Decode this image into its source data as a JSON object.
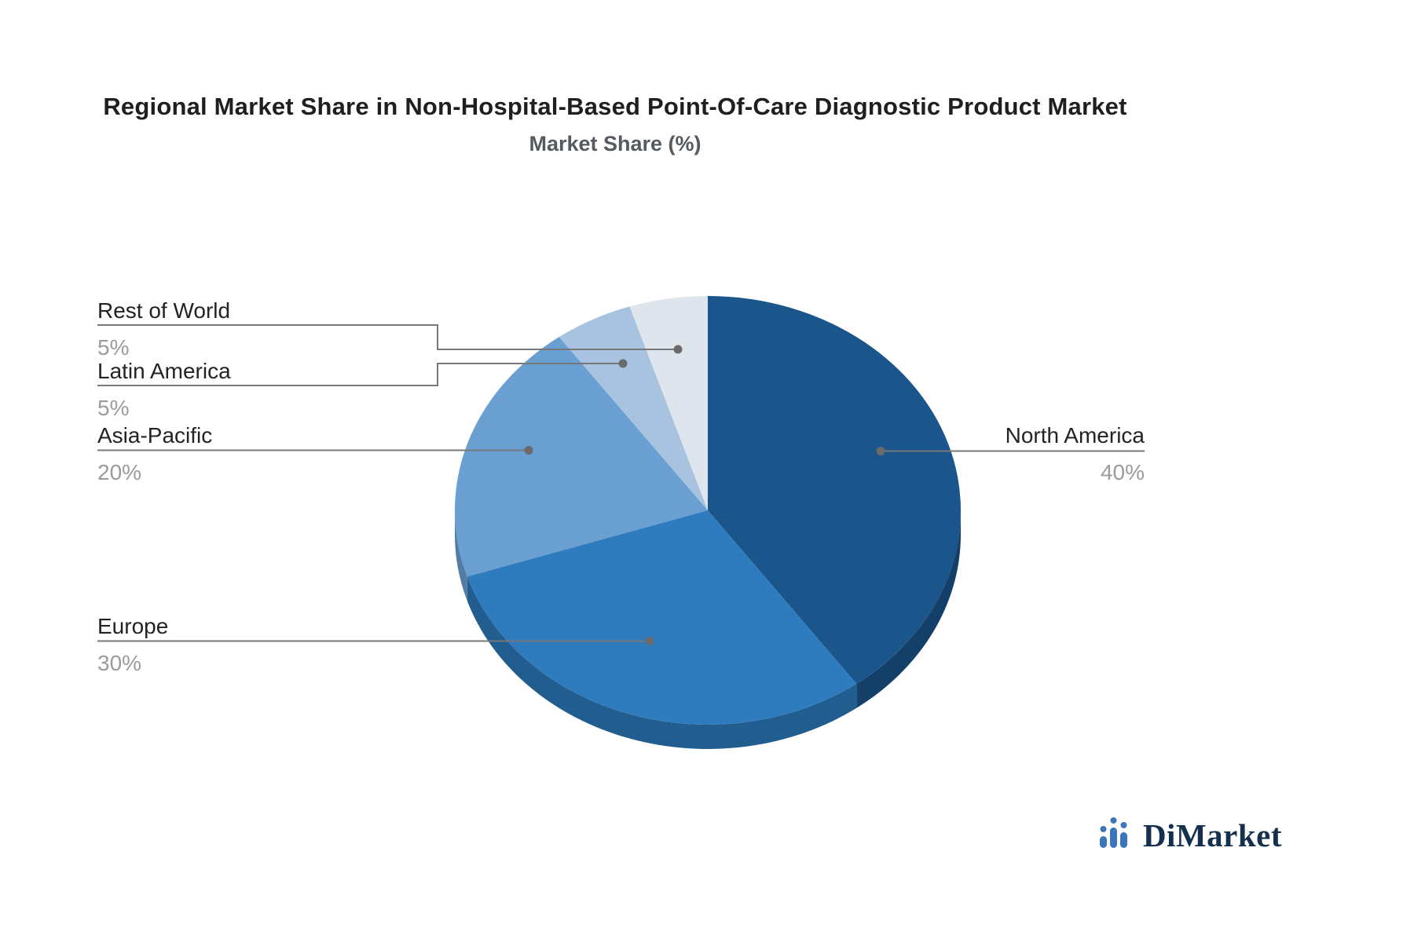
{
  "header": {
    "title": "Regional Market Share in Non-Hospital-Based Point-Of-Care Diagnostic Product Market",
    "subtitle": "Market Share (%)"
  },
  "chart_data": {
    "type": "pie",
    "style": "3d",
    "title": "Regional Market Share in Non-Hospital-Based Point-Of-Care Diagnostic Product Market",
    "subtitle": "Market Share (%)",
    "unit": "%",
    "start_angle_deg": 0,
    "direction": "clockwise",
    "legend_position": "callout-labels",
    "categories": [
      "North America",
      "Europe",
      "Asia-Pacific",
      "Latin America",
      "Rest of World"
    ],
    "values": [
      40,
      30,
      20,
      5,
      5
    ],
    "slice_colors": [
      "#1a568b",
      "#2e7bbd",
      "#6a9fd1",
      "#a8c3df",
      "#dfe5ed"
    ],
    "side_colors": [
      "#143f68",
      "#225d8f",
      "#537ca4",
      "#7e9cbc",
      "#b8c2cf"
    ],
    "labels": [
      {
        "name": "North America",
        "value_label": "40%"
      },
      {
        "name": "Europe",
        "value_label": "30%"
      },
      {
        "name": "Asia-Pacific",
        "value_label": "20%"
      },
      {
        "name": "Latin America",
        "value_label": "5%"
      },
      {
        "name": "Rest of World",
        "value_label": "5%"
      }
    ],
    "leader_line_color": "#777777",
    "leader_dot_color": "#6b6b6b"
  },
  "logo": {
    "text": "DiMarket",
    "icon": "bar-chart-dots-icon",
    "icon_color": "#3b76bb",
    "text_color": "#14304d"
  }
}
